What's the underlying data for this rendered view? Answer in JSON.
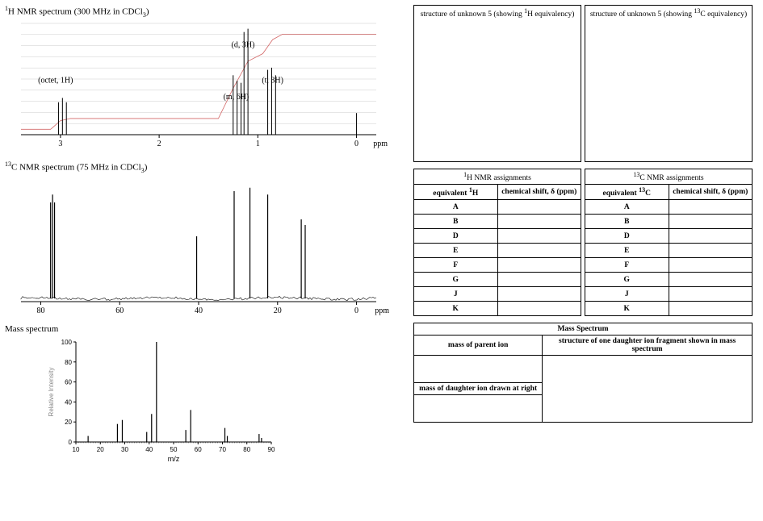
{
  "hnmr": {
    "title_html": "<span class='sup'>1</span>H NMR spectrum (300 MHz in CDCl<span class='sub'>3</span>)",
    "xlabel_unit": "ppm",
    "xticks": [
      3,
      2,
      1,
      0
    ],
    "xlim": [
      3.4,
      -0.2
    ],
    "annotations": [
      {
        "text": "(octet, 1H)",
        "ppm": 3.05,
        "y": 0.55
      },
      {
        "text": "(m, 6H)",
        "ppm": 1.22,
        "y": 0.7
      },
      {
        "text": "(d, 3H)",
        "ppm": 1.15,
        "y": 0.22
      },
      {
        "text": "(t, 3H)",
        "ppm": 0.85,
        "y": 0.55
      }
    ],
    "peaks": [
      {
        "ppm": 3.02,
        "h": 0.3
      },
      {
        "ppm": 2.98,
        "h": 0.34
      },
      {
        "ppm": 2.94,
        "h": 0.3
      },
      {
        "ppm": 1.25,
        "h": 0.55
      },
      {
        "ppm": 1.21,
        "h": 0.5
      },
      {
        "ppm": 1.17,
        "h": 0.48
      },
      {
        "ppm": 1.14,
        "h": 0.95
      },
      {
        "ppm": 1.1,
        "h": 0.98
      },
      {
        "ppm": 0.9,
        "h": 0.6
      },
      {
        "ppm": 0.86,
        "h": 0.62
      },
      {
        "ppm": 0.82,
        "h": 0.55
      },
      {
        "ppm": 0.0,
        "h": 0.2
      }
    ],
    "gridlines": 10,
    "grid_color": "#cccccc",
    "peak_color": "#000000",
    "integration_color": "#d46a6a"
  },
  "cnmr": {
    "title_html": "<span class='sup'>13</span>C NMR spectrum (75 MHz in CDCl<span class='sub'>3</span>)",
    "xlabel_unit": "ppm",
    "xticks": [
      80,
      60,
      40,
      20,
      0
    ],
    "xlim": [
      85,
      -5
    ],
    "peaks_ppm": [
      77.5,
      77.0,
      76.5,
      40.5,
      31.0,
      27.0,
      22.5,
      14.0,
      13.0
    ],
    "peak_heights": [
      0.85,
      0.92,
      0.85,
      0.55,
      0.95,
      0.98,
      0.92,
      0.7,
      0.65
    ],
    "baseline_noise": true,
    "peak_color": "#000000"
  },
  "mass": {
    "title": "Mass spectrum",
    "xlabel": "m/z",
    "ylabel": "Relative Intensity",
    "xlim": [
      10,
      90
    ],
    "xticks": [
      10,
      20,
      30,
      40,
      50,
      60,
      70,
      80,
      90
    ],
    "ylim": [
      0,
      100
    ],
    "yticks": [
      0,
      20,
      40,
      60,
      80,
      100
    ],
    "bars": [
      {
        "mz": 15,
        "h": 6
      },
      {
        "mz": 27,
        "h": 18
      },
      {
        "mz": 29,
        "h": 22
      },
      {
        "mz": 39,
        "h": 10
      },
      {
        "mz": 41,
        "h": 28
      },
      {
        "mz": 43,
        "h": 100
      },
      {
        "mz": 55,
        "h": 12
      },
      {
        "mz": 57,
        "h": 32
      },
      {
        "mz": 71,
        "h": 14
      },
      {
        "mz": 72,
        "h": 6
      },
      {
        "mz": 85,
        "h": 8
      },
      {
        "mz": 86,
        "h": 4
      }
    ],
    "bar_color": "#000000",
    "axis_color": "#000000",
    "label_fontsize": 8
  },
  "right": {
    "struct_left_title_html": "structure of unknown 5 (showing <span class='sup'>1</span>H equivalency)",
    "struct_right_title_html": "structure of unknown 5 (showing <span class='sup'>13</span>C equivalency)",
    "h_table": {
      "section_html": "<span class='sup'>1</span>H NMR assignments",
      "col1_html": "equivalent <span class='sup'>1</span>H",
      "col2": "chemical shift, δ (ppm)",
      "rows": [
        "A",
        "B",
        "D",
        "E",
        "F",
        "G",
        "J",
        "K"
      ]
    },
    "c_table": {
      "section_html": "<span class='sup'>13</span>C NMR assignments",
      "col1_html": "equivalent <span class='sup'>13</span>C",
      "col2": "chemical shift, δ (ppm)",
      "rows": [
        "A",
        "B",
        "D",
        "E",
        "F",
        "G",
        "J",
        "K"
      ]
    },
    "mass_table": {
      "title": "Mass Spectrum",
      "parent_label": "mass of parent ion",
      "fragment_label": "structure of one daughter ion fragment shown in mass spectrum",
      "daughter_label": "mass of daughter ion drawn at right"
    }
  }
}
